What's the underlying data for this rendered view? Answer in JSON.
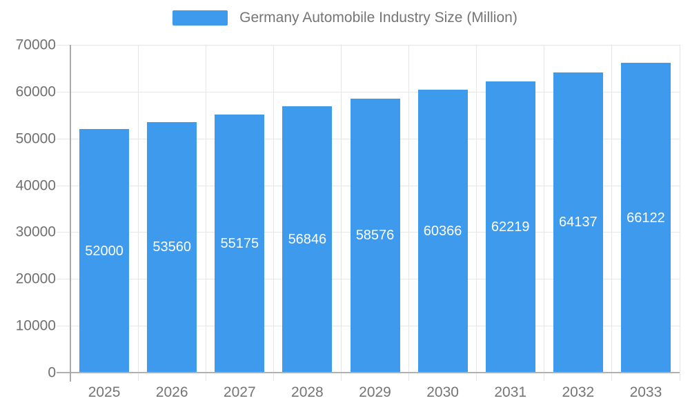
{
  "chart_data": {
    "type": "bar",
    "title": "Germany Automobile Industry Size (Million)",
    "categories": [
      "2025",
      "2026",
      "2027",
      "2028",
      "2029",
      "2030",
      "2031",
      "2032",
      "2033"
    ],
    "values": [
      52000,
      53560,
      55175,
      56846,
      58576,
      60366,
      62219,
      64137,
      66122
    ],
    "xlabel": "",
    "ylabel": "",
    "ylim": [
      0,
      70000
    ],
    "y_ticks": [
      0,
      10000,
      20000,
      30000,
      40000,
      50000,
      60000,
      70000
    ],
    "grid": true,
    "legend_position": "top",
    "value_labels": "inside-center"
  },
  "colors": {
    "bar": "#3d9aec",
    "grid": "#e6e6e6",
    "axis": "#b0b0b0",
    "axis_text": "#707070",
    "legend_text": "#757575",
    "value_label_text": "#ffffff",
    "background": "#ffffff"
  }
}
